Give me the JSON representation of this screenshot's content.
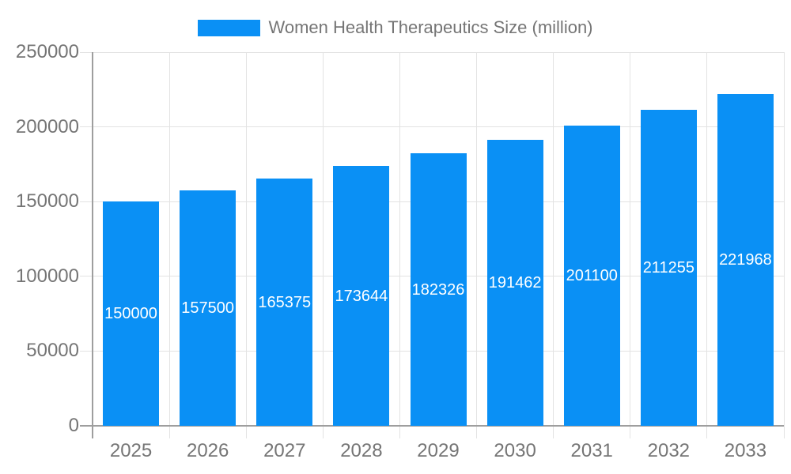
{
  "chart_data": {
    "type": "bar",
    "title": "Women Health Therapeutics Size (million)",
    "categories": [
      "2025",
      "2026",
      "2027",
      "2028",
      "2029",
      "2030",
      "2031",
      "2032",
      "2033"
    ],
    "series": [
      {
        "name": "Women Health Therapeutics Size (million)",
        "color": "#0a90f5",
        "values": [
          150000,
          157500,
          165375,
          173644,
          182326,
          191462,
          201100,
          211255,
          221968
        ]
      }
    ],
    "value_labels": [
      "150000",
      "157500",
      "165375",
      "173644",
      "182326",
      "191462",
      "201100",
      "211255",
      "221968"
    ],
    "xlabel": "",
    "ylabel": "",
    "ylim": [
      0,
      250000
    ],
    "yticks": [
      0,
      50000,
      100000,
      150000,
      200000,
      250000
    ],
    "ytick_labels": [
      "0",
      "50000",
      "100000",
      "150000",
      "200000",
      "250000"
    ],
    "grid": true,
    "legend_position": "top"
  },
  "colors": {
    "bar": "#0a90f5",
    "axis_text": "#757575",
    "grid_line": "#e3e3e3",
    "axis_line": "#9e9e9e",
    "bar_label": "#ffffff",
    "background": "#ffffff"
  }
}
